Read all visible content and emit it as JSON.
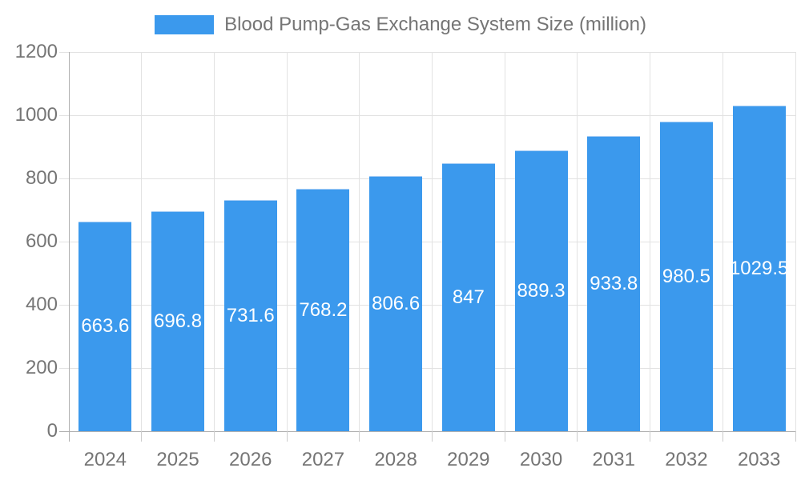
{
  "legend": {
    "label": "Blood Pump-Gas Exchange System Size (million)"
  },
  "chart_data": {
    "type": "bar",
    "title": "Blood Pump-Gas Exchange System Size (million)",
    "series_name": "Blood Pump-Gas Exchange System Size (million)",
    "categories": [
      "2024",
      "2025",
      "2026",
      "2027",
      "2028",
      "2029",
      "2030",
      "2031",
      "2032",
      "2033"
    ],
    "values": [
      663.6,
      696.8,
      731.6,
      768.2,
      806.6,
      847,
      889.3,
      933.8,
      980.5,
      1029.5
    ],
    "value_labels": [
      "663.6",
      "696.8",
      "731.6",
      "768.2",
      "806.6",
      "847",
      "889.3",
      "933.8",
      "980.5",
      "1029.5"
    ],
    "xlabel": "",
    "ylabel": "",
    "ylim": [
      0,
      1200
    ],
    "yticks": [
      0,
      200,
      400,
      600,
      800,
      1000,
      1200
    ],
    "grid": "horizontal-and-vertical",
    "legend_position": "top-center",
    "value_label_position": "center-of-bar",
    "colors": {
      "bar": "#3B99ED",
      "bar_edge": "#A6CDF5",
      "grid": "#E2E2E2",
      "axis": "#B0B0B0",
      "tick": "#CCCCCC",
      "axis_label": "#757575",
      "value_label": "#FFFFFF",
      "background": "#FFFFFF"
    }
  }
}
